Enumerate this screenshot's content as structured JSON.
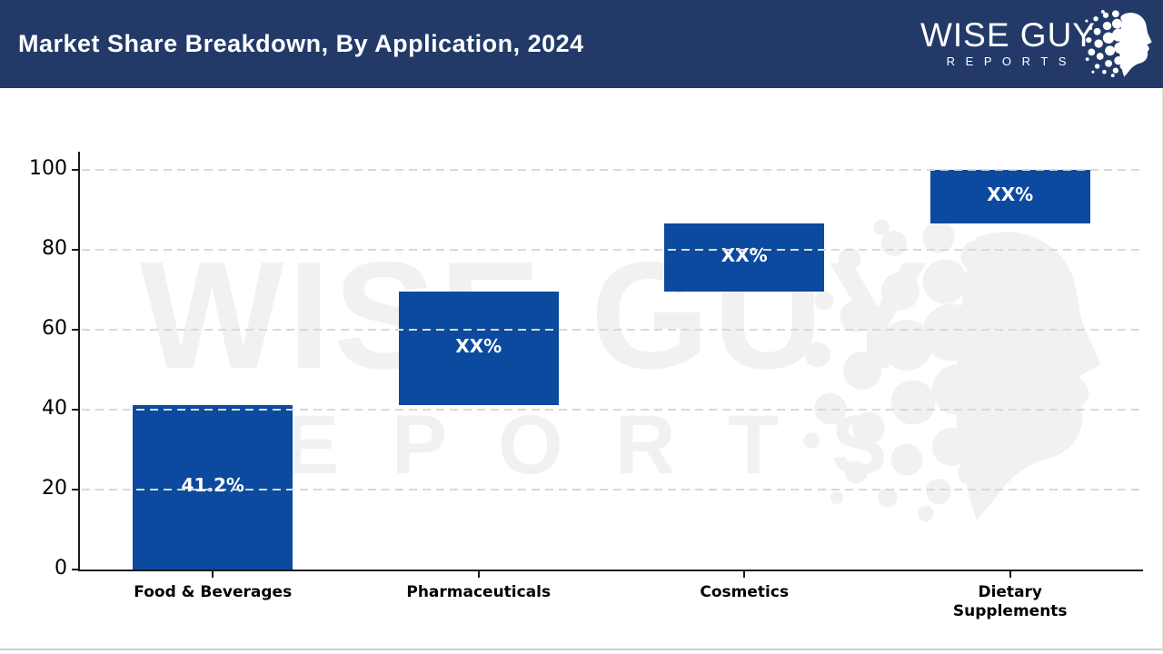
{
  "header": {
    "title": "Market Share Breakdown, By Application, 2024",
    "logo": {
      "name_line": "WISE GUY",
      "reports_line": "R E P O R T S"
    }
  },
  "watermark": {
    "name_line": "WISE GUY",
    "reports_line": "R E P O R T S"
  },
  "chart_data": {
    "type": "bar",
    "subtype": "waterfall",
    "title": "Market Share Breakdown, By Application, 2024",
    "categories": [
      "Food & Beverages",
      "Pharmaceuticals",
      "Cosmetics",
      "Dietary Supplements"
    ],
    "category_label_lines": [
      [
        "Food & Beverages"
      ],
      [
        "Pharmaceuticals"
      ],
      [
        "Cosmetics"
      ],
      [
        "Dietary",
        "Supplements"
      ]
    ],
    "segments": [
      {
        "category": "Food & Beverages",
        "start": 0,
        "end": 41.2,
        "label": "41.2%"
      },
      {
        "category": "Pharmaceuticals",
        "start": 41.2,
        "end": 69.6,
        "label": "XX%"
      },
      {
        "category": "Cosmetics",
        "start": 69.6,
        "end": 86.7,
        "label": "XX%"
      },
      {
        "category": "Dietary Supplements",
        "start": 86.7,
        "end": 100,
        "label": "XX%"
      }
    ],
    "xlabel": "",
    "ylabel": "",
    "ylim": [
      0,
      100
    ],
    "yticks": [
      0,
      20,
      40,
      60,
      80,
      100
    ],
    "grid": "horizontal-dashed",
    "legend": "none",
    "bar_color": "#0b4a9e",
    "bar_label_color": "#ffffff",
    "axis_color": "#1a1a1a",
    "gridline_color": "#d9d9d9",
    "header_bg": "#233a68",
    "watermark_color": "#f1f1f1"
  }
}
